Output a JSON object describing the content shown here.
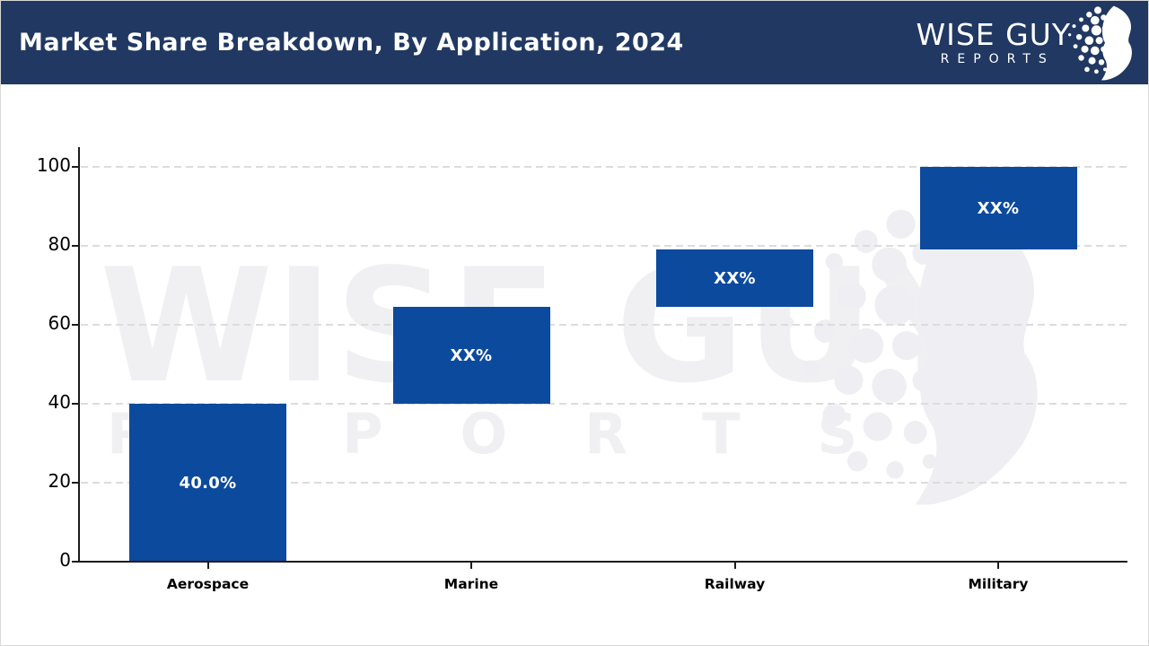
{
  "header": {
    "title": "Market Share Breakdown, By Application, 2024",
    "logo": {
      "line1": "WISE GUY",
      "line2": "REPORTS"
    }
  },
  "watermark": {
    "line1": "WISE GUY",
    "line2": "REPORTS"
  },
  "colors": {
    "header_bg": "#203862",
    "bar": "#0c4a9e",
    "grid": "#dcdcdc",
    "axis": "#1c1c1c",
    "bar_label_text": "#ffffff",
    "watermark": "#f0f0f3",
    "page_border": "#d9d9d9"
  },
  "chart_data": {
    "type": "bar",
    "subtype": "waterfall",
    "title": "Market Share Breakdown, By Application, 2024",
    "categories": [
      "Aerospace",
      "Marine",
      "Railway",
      "Military"
    ],
    "segments": [
      {
        "category": "Aerospace",
        "start": 0,
        "end": 40,
        "value": 40,
        "label": "40.0%"
      },
      {
        "category": "Marine",
        "start": 40,
        "end": 64.5,
        "value": 24.5,
        "label": "XX%"
      },
      {
        "category": "Railway",
        "start": 64.5,
        "end": 79,
        "value": 14.5,
        "label": "XX%"
      },
      {
        "category": "Military",
        "start": 79,
        "end": 100,
        "value": 21,
        "label": "XX%"
      }
    ],
    "yticks": [
      0,
      20,
      40,
      60,
      80,
      100
    ],
    "ylim": [
      0,
      104.5
    ],
    "xlabel": "",
    "ylabel": "",
    "grid": "horizontal-dashed",
    "legend": "none"
  }
}
